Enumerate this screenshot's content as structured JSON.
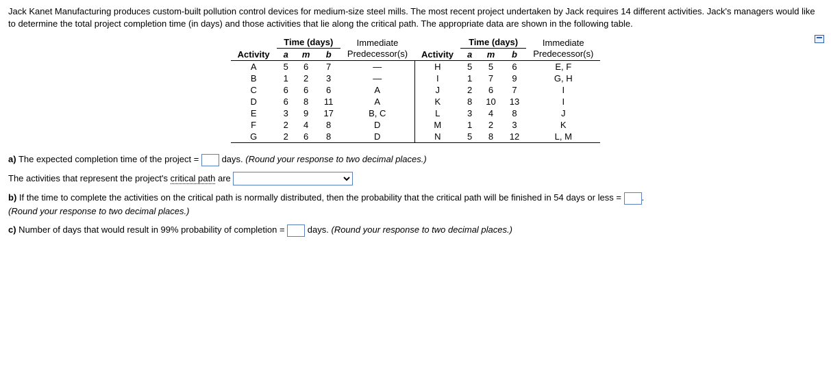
{
  "intro": "Jack Kanet Manufacturing produces custom-built pollution control devices for medium-size steel mills. The most recent project undertaken by Jack requires 14 different activities. Jack's managers would like to determine the total project completion time (in days) and those activities that lie along the critical path. The appropriate data are shown in the following table.",
  "headers": {
    "activity": "Activity",
    "time_group": "Time (days)",
    "a": "a",
    "m": "m",
    "b": "b",
    "pred": "Immediate Predecessor(s)"
  },
  "left_rows": [
    {
      "act": "A",
      "a": "5",
      "m": "6",
      "b": "7",
      "pred": "—"
    },
    {
      "act": "B",
      "a": "1",
      "m": "2",
      "b": "3",
      "pred": "—"
    },
    {
      "act": "C",
      "a": "6",
      "m": "6",
      "b": "6",
      "pred": "A"
    },
    {
      "act": "D",
      "a": "6",
      "m": "8",
      "b": "11",
      "pred": "A"
    },
    {
      "act": "E",
      "a": "3",
      "m": "9",
      "b": "17",
      "pred": "B, C"
    },
    {
      "act": "F",
      "a": "2",
      "m": "4",
      "b": "8",
      "pred": "D"
    },
    {
      "act": "G",
      "a": "2",
      "m": "6",
      "b": "8",
      "pred": "D"
    }
  ],
  "right_rows": [
    {
      "act": "H",
      "a": "5",
      "m": "5",
      "b": "6",
      "pred": "E, F"
    },
    {
      "act": "I",
      "a": "1",
      "m": "7",
      "b": "9",
      "pred": "G, H"
    },
    {
      "act": "J",
      "a": "2",
      "m": "6",
      "b": "7",
      "pred": "I"
    },
    {
      "act": "K",
      "a": "8",
      "m": "10",
      "b": "13",
      "pred": "I"
    },
    {
      "act": "L",
      "a": "3",
      "m": "4",
      "b": "8",
      "pred": "J"
    },
    {
      "act": "M",
      "a": "1",
      "m": "2",
      "b": "3",
      "pred": "K"
    },
    {
      "act": "N",
      "a": "5",
      "m": "8",
      "b": "12",
      "pred": "L, M"
    }
  ],
  "qa": {
    "a_prefix_bold": "a)",
    "a_text1": " The expected completion time of the project = ",
    "a_text2": " days. ",
    "a_round": "(Round your response to two decimal places.)",
    "a_critpath_pre": "The activities that represent the project's ",
    "a_critpath_term": "critical path",
    "a_critpath_post": " are ",
    "b_prefix_bold": "b)",
    "b_text1": " If the time to complete the activities on the critical path is normally distributed, then the probability that the critical path will be finished in 54 days or less = ",
    "b_text2": ".",
    "b_round": "(Round your response to two decimal places.)",
    "c_prefix_bold": "c)",
    "c_text1": " Number of days that would result in 99% probability of completion = ",
    "c_text2": " days. ",
    "c_round": "(Round your response to two decimal places.)"
  }
}
